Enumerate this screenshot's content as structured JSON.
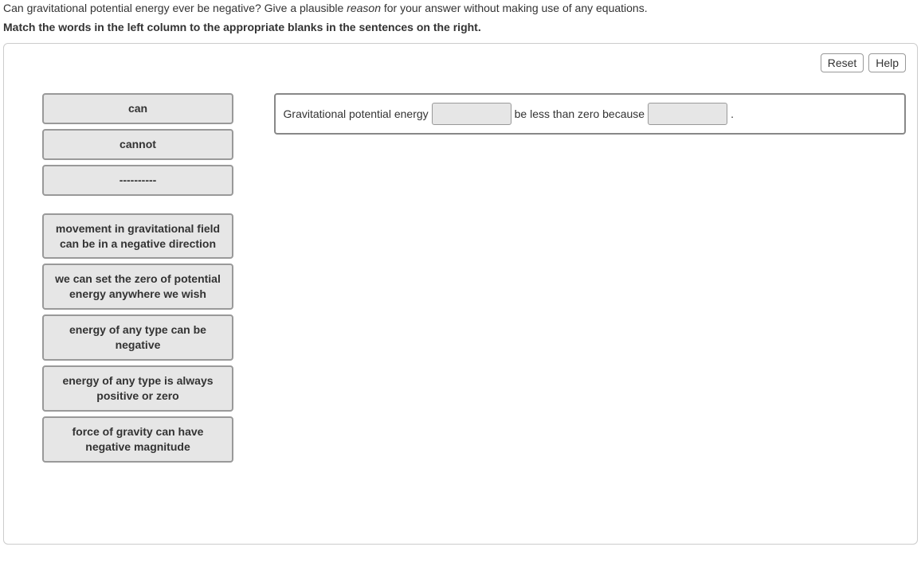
{
  "question": {
    "line1_pre": "Can gravitational potential energy ever be negative? Give a plausible ",
    "line1_italic": "reason",
    "line1_post": " for your answer without making use of any equations.",
    "instruction": "Match the words in the left column to the appropriate blanks in the sentences on the right."
  },
  "toolbar": {
    "reset_label": "Reset",
    "help_label": "Help"
  },
  "tiles": [
    "can",
    "cannot",
    "----------",
    "movement in gravitational field can be in a negative direction",
    "we can set the zero of potential energy anywhere we wish",
    "energy of any type can be negative",
    "energy of any type is always positive or zero",
    "force of gravity can have negative magnitude"
  ],
  "sentence": {
    "part1": "Gravitational potential energy",
    "part2": "be less than zero because",
    "part3": "."
  }
}
